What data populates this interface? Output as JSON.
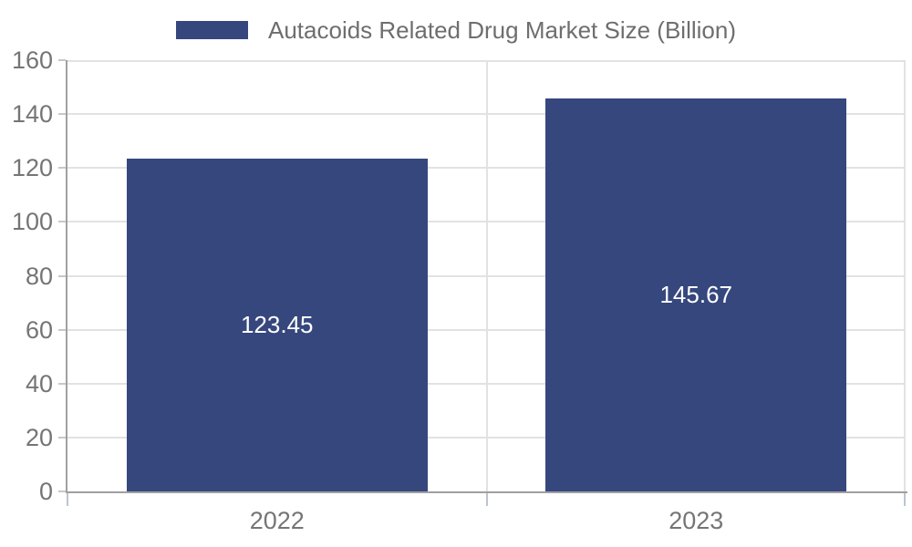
{
  "chart_data": {
    "type": "bar",
    "title": "Autacoids Related Drug Market Size (Billion)",
    "legend": [
      "Autacoids Related Drug Market Size (Billion)"
    ],
    "legend_position": "top-center",
    "categories": [
      "2022",
      "2023"
    ],
    "values": [
      123.45,
      145.67
    ],
    "data_labels": [
      "123.45",
      "145.67"
    ],
    "xlabel": "",
    "ylabel": "",
    "ylim": [
      0,
      160
    ],
    "y_ticks": [
      0,
      20,
      40,
      60,
      80,
      100,
      120,
      140,
      160
    ],
    "grid": true,
    "colors": {
      "bar": "#36477e",
      "data_label": "#ffffff",
      "gridline": "#e2e2e2",
      "axis_line": "#a0a0a0",
      "tick_label": "#757575",
      "legend_text": "#6e6e6e",
      "y_tick_mark": "#c8c8c8",
      "x_tick_mark": "#bcc3d4",
      "background": "#ffffff"
    }
  }
}
